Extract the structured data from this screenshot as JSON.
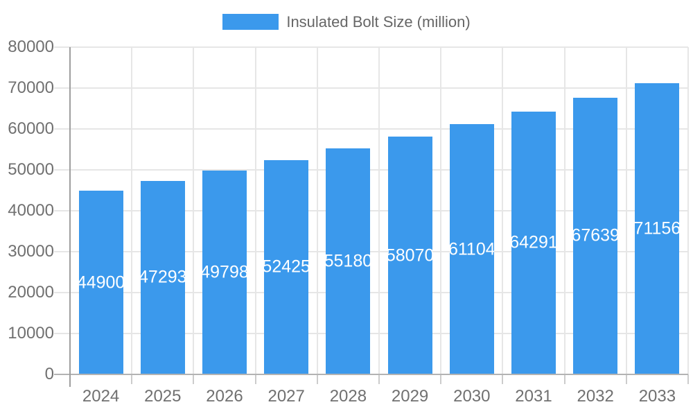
{
  "chart_data": {
    "type": "bar",
    "legend_label": "Insulated Bolt Size (million)",
    "legend_position": "top",
    "categories": [
      "2024",
      "2025",
      "2026",
      "2027",
      "2028",
      "2029",
      "2030",
      "2031",
      "2032",
      "2033"
    ],
    "series": [
      {
        "name": "Insulated Bolt Size (million)",
        "values": [
          44900,
          47293,
          49798,
          52425,
          55180,
          58070,
          61104,
          64291,
          67639,
          71156
        ]
      }
    ],
    "xlabel": "",
    "ylabel": "",
    "ylim": [
      0,
      80000
    ],
    "y_ticks": [
      0,
      10000,
      20000,
      30000,
      40000,
      50000,
      60000,
      70000,
      80000
    ],
    "y_tick_labels": [
      "0",
      "10000",
      "20000",
      "30000",
      "40000",
      "50000",
      "60000",
      "70000",
      "80000"
    ],
    "grid": true,
    "colors": {
      "bar": "#3B99EC",
      "bar_label": "#FFFFFF",
      "gridline": "#E6E6E6",
      "axis_line": "#9E9E9E",
      "baseline": "#B3B3B3",
      "category_tick": "#CCCCCC",
      "axis_label": "#707070",
      "legend_text": "#666666"
    }
  }
}
